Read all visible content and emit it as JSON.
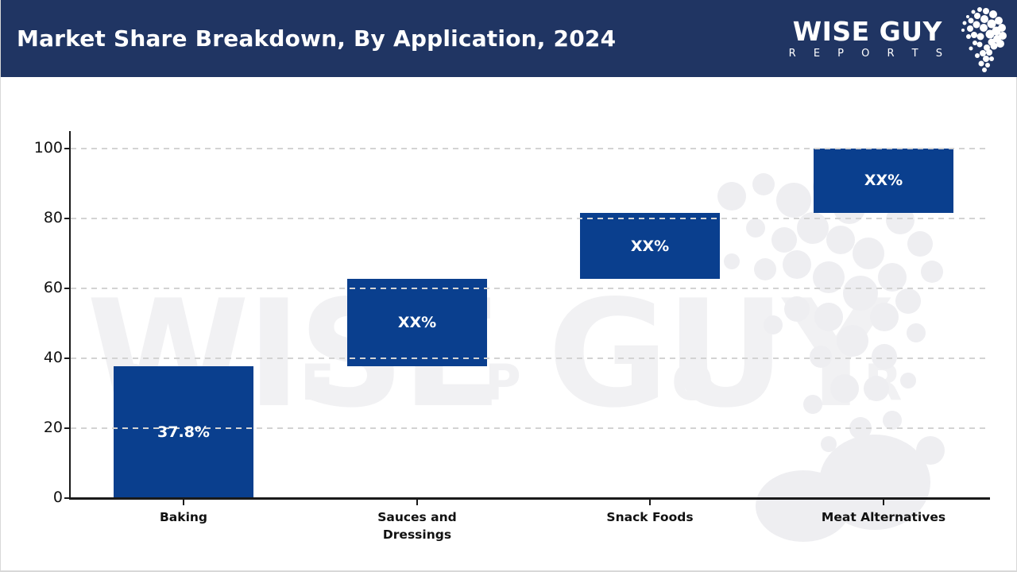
{
  "header": {
    "title": "Market Share Breakdown, By Application, 2024",
    "bg_color": "#203563",
    "logo": {
      "line1": "WISE GUY",
      "line2": "R E P O R T S"
    }
  },
  "watermark": {
    "line1": "WISE GUY",
    "line2": "R E P O R T S"
  },
  "chart_data": {
    "type": "bar",
    "subtype": "waterfall",
    "title": "Market Share Breakdown, By Application, 2024",
    "categories": [
      "Baking",
      "Sauces and\nDressings",
      "Snack Foods",
      "Meat Alternatives"
    ],
    "segments": [
      {
        "category": "Baking",
        "start": 0,
        "end": 37.8,
        "label": "37.8%"
      },
      {
        "category": "Sauces and Dressings",
        "start": 37.8,
        "end": 62.7,
        "label": "XX%"
      },
      {
        "category": "Snack Foods",
        "start": 62.7,
        "end": 81.6,
        "label": "XX%"
      },
      {
        "category": "Meat Alternatives",
        "start": 81.6,
        "end": 100,
        "label": "XX%"
      }
    ],
    "y_ticks": [
      0,
      20,
      40,
      60,
      80,
      100
    ],
    "ylim": [
      0,
      100
    ],
    "xlabel": "",
    "ylabel": "",
    "bar_color": "#0a3f8e",
    "grid": "dashed-horizontal",
    "legend": "none"
  }
}
